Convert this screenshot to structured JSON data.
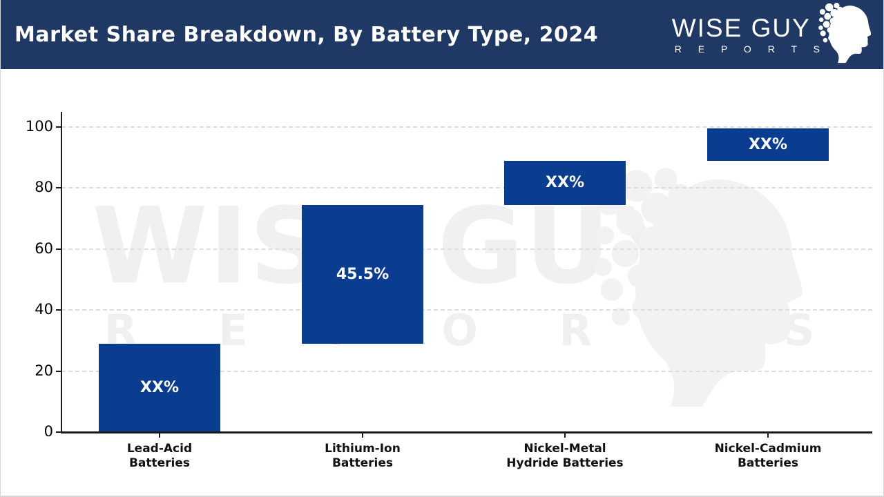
{
  "header": {
    "title": "Market Share Breakdown, By Battery Type, 2024",
    "bg_color": "#1F3864",
    "logo": {
      "wordmark": "WISE GUY",
      "subtext": "R E P O R T S"
    }
  },
  "watermark": {
    "wordmark": "WISE GUY",
    "subtext": "R E P O R T S"
  },
  "chart_data": {
    "type": "bar",
    "variant": "floating-segment-waterfall",
    "title": "Market Share Breakdown, By Battery Type, 2024",
    "categories": [
      "Lead-Acid Batteries",
      "Lithium-Ion Batteries",
      "Nickel-Metal Hydride Batteries",
      "Nickel-Cadmium Batteries"
    ],
    "category_label_lines": [
      [
        "Lead-Acid",
        "Batteries"
      ],
      [
        "Lithium-Ion",
        "Batteries"
      ],
      [
        "Nickel-Metal",
        "Hydride Batteries"
      ],
      [
        "Nickel-Cadmium",
        "Batteries"
      ]
    ],
    "bars": [
      {
        "category": "Lead-Acid Batteries",
        "start": 0,
        "end": 29,
        "value_label": "XX%"
      },
      {
        "category": "Lithium-Ion Batteries",
        "start": 29,
        "end": 74.5,
        "value_label": "45.5%"
      },
      {
        "category": "Nickel-Metal Hydride Batteries",
        "start": 74.5,
        "end": 89,
        "value_label": "XX%"
      },
      {
        "category": "Nickel-Cadmium Batteries",
        "start": 89,
        "end": 99.5,
        "value_label": "XX%"
      }
    ],
    "yticks": [
      0,
      20,
      40,
      60,
      80,
      100
    ],
    "ylim": [
      0,
      105
    ],
    "xlabel": "",
    "ylabel": "",
    "grid": "horizontal-dashed",
    "legend": "none",
    "bar_color": "#0A3D8F",
    "bar_label_color": "#FFFFFF",
    "axis_color": "#1A1A1A",
    "gridline_color": "#DCDCDC"
  }
}
